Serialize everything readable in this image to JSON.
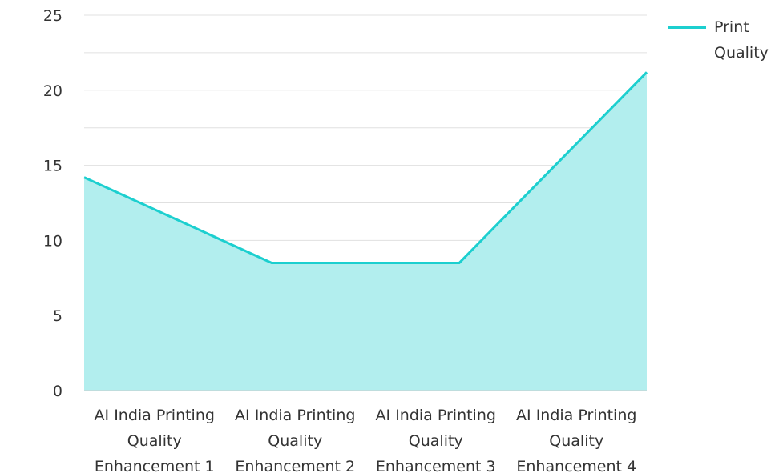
{
  "chart_data": {
    "type": "area",
    "categories": [
      "AI India Printing Quality Enhancement 1",
      "AI India Printing Quality Enhancement 2",
      "AI India Printing Quality Enhancement 3",
      "AI India Printing Quality Enhancement 4"
    ],
    "category_lines": [
      [
        "AI India Printing",
        "Quality",
        "Enhancement 1"
      ],
      [
        "AI India Printing",
        "Quality",
        "Enhancement 2"
      ],
      [
        "AI India Printing",
        "Quality",
        "Enhancement 3"
      ],
      [
        "AI India Printing",
        "Quality",
        "Enhancement 4"
      ]
    ],
    "series": [
      {
        "name": "Print Quality",
        "values": [
          14.2,
          8.5,
          8.5,
          21.2
        ]
      }
    ],
    "legend_lines": [
      "Print",
      "Quality"
    ],
    "ylim": [
      0,
      25
    ],
    "yticks": [
      0,
      5,
      10,
      15,
      20,
      25
    ],
    "grid": true,
    "legend_position": "top-right",
    "colors": {
      "line": "#1ccfcf",
      "fill": "#b2eeee",
      "grid": "#e0e0e0",
      "axis": "#cccccc"
    }
  }
}
